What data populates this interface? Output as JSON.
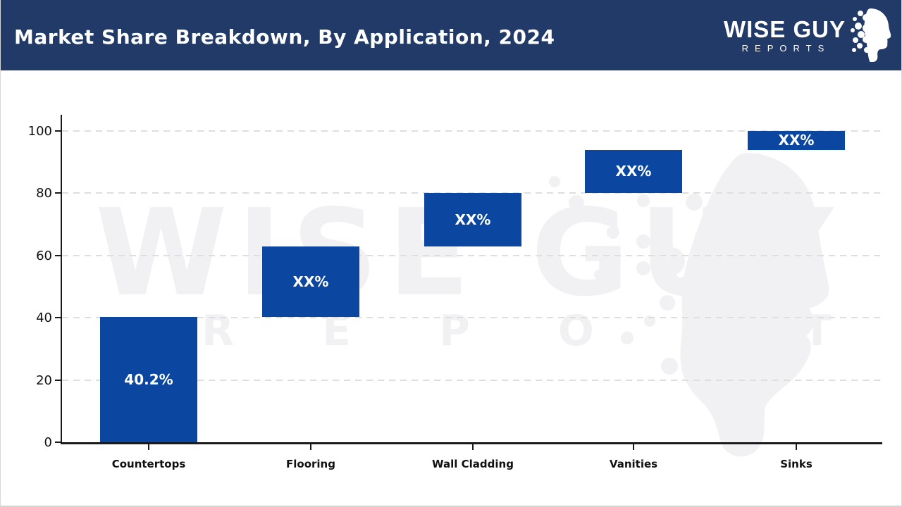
{
  "header": {
    "title": "Market Share Breakdown, By Application, 2024",
    "logo": {
      "line1": "WISE GUY",
      "line2": "REPORTS"
    },
    "bg_color": "#213A67"
  },
  "watermark": {
    "line1": "WISE GUY",
    "line2": "R E P O R T S"
  },
  "chart_data": {
    "type": "bar",
    "subtype": "waterfall",
    "title": "Market Share Breakdown, By Application, 2024",
    "categories": [
      "Countertops",
      "Flooring",
      "Wall Cladding",
      "Vanities",
      "Sinks"
    ],
    "segments": [
      {
        "category": "Countertops",
        "start": 0,
        "end": 40.2,
        "label": "40.2%"
      },
      {
        "category": "Flooring",
        "start": 40.2,
        "end": 63,
        "label": "XX%"
      },
      {
        "category": "Wall Cladding",
        "start": 63,
        "end": 80,
        "label": "XX%"
      },
      {
        "category": "Vanities",
        "start": 80,
        "end": 94,
        "label": "XX%"
      },
      {
        "category": "Sinks",
        "start": 94,
        "end": 100,
        "label": "XX%"
      }
    ],
    "y_ticks": [
      0,
      20,
      40,
      60,
      80,
      100
    ],
    "ylim": [
      0,
      105
    ],
    "xlabel": "",
    "ylabel": "",
    "bar_color": "#0B47A1",
    "grid": "horizontal-dashed",
    "legend": "none"
  }
}
